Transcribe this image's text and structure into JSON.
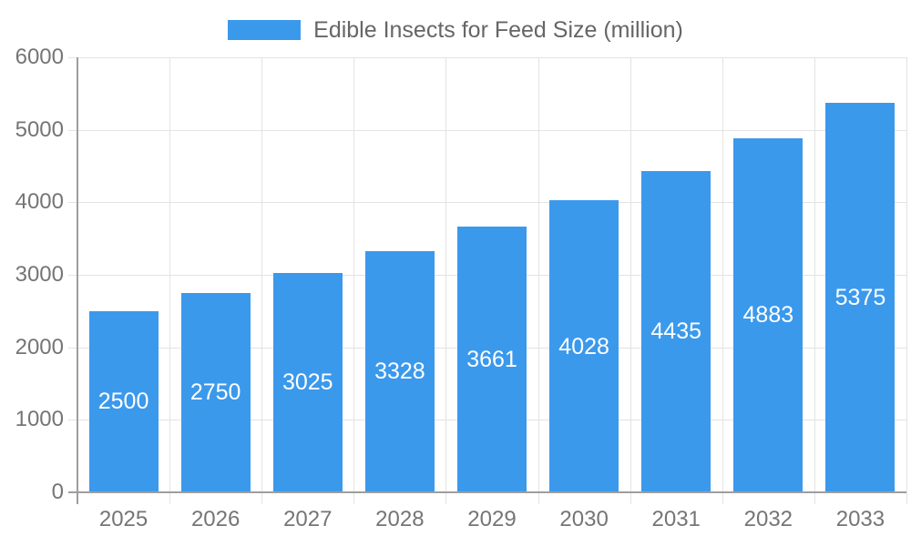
{
  "colors": {
    "bar": "#3B99EC",
    "grid": "#E3E3E3",
    "axis": "#9E9E9E",
    "tick_text": "#757575",
    "legend_text": "#666666",
    "value_text": "#FFFFFF",
    "background": "#FFFFFF"
  },
  "legend": {
    "label": "Edible Insects for Feed Size (million)"
  },
  "chart_data": {
    "type": "bar",
    "title": "Edible Insects for Feed Size (million)",
    "categories": [
      "2025",
      "2026",
      "2027",
      "2028",
      "2029",
      "2030",
      "2031",
      "2032",
      "2033"
    ],
    "values": [
      2500,
      2750,
      3025,
      3328,
      3661,
      4028,
      4435,
      4883,
      5375
    ],
    "xlabel": "",
    "ylabel": "",
    "ylim": [
      0,
      6000
    ],
    "ytick_step": 1000,
    "yticks": [
      0,
      1000,
      2000,
      3000,
      4000,
      5000,
      6000
    ],
    "grid": true,
    "legend_position": "top",
    "value_label_position": "inside-center",
    "bar_color": "#3B99EC"
  }
}
